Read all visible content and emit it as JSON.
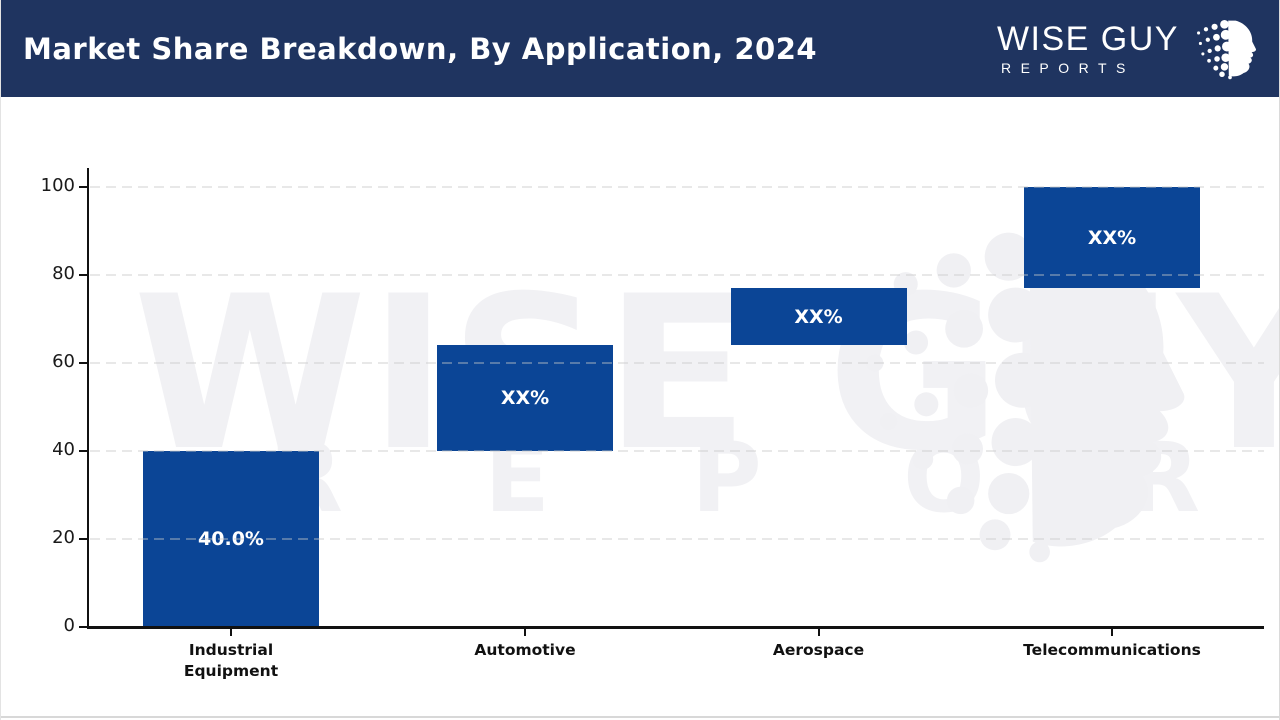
{
  "header": {
    "title": "Market Share Breakdown, By Application, 2024",
    "bg_color": "#1f3460",
    "text_color": "#ffffff",
    "logo": {
      "line1": "WISE GUY",
      "line2": "REPORTS"
    }
  },
  "watermark": {
    "line1": "WISE GUY",
    "line2": "R E P O R T S"
  },
  "chart_data": {
    "type": "bar",
    "subtype": "waterfall",
    "title": "Market Share Breakdown, By Application, 2024",
    "categories": [
      "Industrial\nEquipment",
      "Automotive",
      "Aerospace",
      "Telecommunications"
    ],
    "segments": [
      {
        "category": "Industrial Equipment",
        "start": 0,
        "end": 40,
        "label": "40.0%"
      },
      {
        "category": "Automotive",
        "start": 40,
        "end": 64,
        "label": "XX%"
      },
      {
        "category": "Aerospace",
        "start": 64,
        "end": 77,
        "label": "XX%"
      },
      {
        "category": "Telecommunications",
        "start": 77,
        "end": 100,
        "label": "XX%"
      }
    ],
    "xlabel": "",
    "ylabel": "",
    "ylim": [
      0,
      100
    ],
    "y_ticks": [
      0,
      20,
      40,
      60,
      80,
      100
    ],
    "grid": "horizontal-dashed",
    "legend": "none",
    "bar_color": "#0b4596",
    "bar_label_color": "#ffffff",
    "axis_color": "#111111",
    "grid_color": "#c8c8c8"
  }
}
